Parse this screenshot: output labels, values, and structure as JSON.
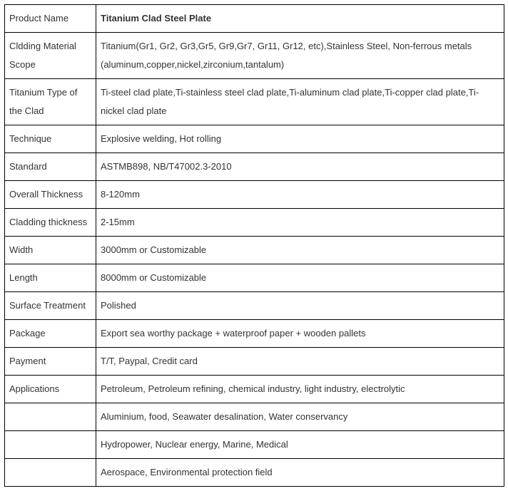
{
  "table": {
    "label_width": 128,
    "value_width": 572,
    "border_color": "#000000",
    "text_color": "#333333",
    "font_size": 13,
    "line_height": 2.0,
    "rows": [
      {
        "label": "Product Name",
        "value": "Titanium Clad Steel Plate",
        "value_bold": true
      },
      {
        "label": "Cldding Material Scope",
        "value": "Titanium(Gr1, Gr2, Gr3,Gr5, Gr9,Gr7, Gr11, Gr12, etc),Stainless Steel, Non-ferrous metals (aluminum,copper,nickel,zirconium,tantalum)",
        "value_bold": false
      },
      {
        "label": "Titanium Type of the Clad",
        "value": "Ti-steel clad plate,Ti-stainless steel clad plate,Ti-aluminum clad plate,Ti-copper clad plate,Ti-nickel clad plate",
        "value_bold": false
      },
      {
        "label": "Technique",
        "value": "Explosive welding, Hot rolling",
        "value_bold": false
      },
      {
        "label": "Standard",
        "value": "ASTMB898,  NB/T47002.3-2010",
        "value_bold": false
      },
      {
        "label": "Overall Thickness",
        "value": "8-120mm",
        "value_bold": false
      },
      {
        "label": "Cladding thickness",
        "value": "2-15mm",
        "value_bold": false
      },
      {
        "label": "Width",
        "value": "3000mm or Customizable",
        "value_bold": false
      },
      {
        "label": "Length",
        "value": "8000mm or Customizable",
        "value_bold": false
      },
      {
        "label": "Surface Treatment",
        "value": "Polished",
        "value_bold": false
      },
      {
        "label": "Package",
        "value": "Export sea worthy package + waterproof paper + wooden pallets",
        "value_bold": false
      },
      {
        "label": "Payment",
        "value": "T/T,   Paypal, Credit card",
        "value_bold": false
      },
      {
        "label": "Applications",
        "value": "Petroleum, Petroleum refining, chemical industry, light industry, electrolytic",
        "value_bold": false
      },
      {
        "label": "",
        "value": "Aluminium, food, Seawater desalination, Water conservancy",
        "value_bold": false
      },
      {
        "label": "",
        "value": "Hydropower, Nuclear energy, Marine, Medical",
        "value_bold": false
      },
      {
        "label": "",
        "value": "Aerospace, Environmental protection field",
        "value_bold": false
      }
    ]
  }
}
